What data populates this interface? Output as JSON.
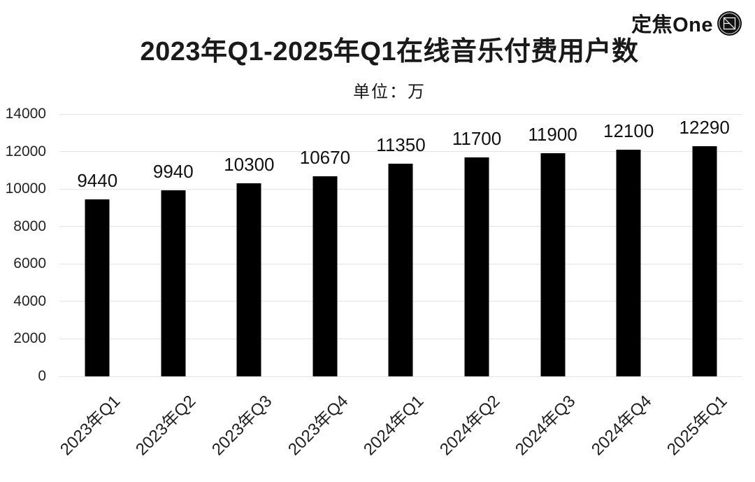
{
  "logo": {
    "text": "定焦One",
    "icon": "camera-lens-logo-icon"
  },
  "colors": {
    "background": "#ffffff",
    "bar": "#000000",
    "grid": "#e3e3e3",
    "text": "#1c1c1c"
  },
  "chart_data": {
    "type": "bar",
    "title": "2023年Q1-2025年Q1在线音乐付费用户数",
    "subtitle": "单位：万",
    "unit": "万",
    "categories": [
      "2023年Q1",
      "2023年Q2",
      "2023年Q3",
      "2023年Q4",
      "2024年Q1",
      "2024年Q2",
      "2024年Q3",
      "2024年Q4",
      "2025年Q1"
    ],
    "values": [
      9440,
      9940,
      10300,
      10670,
      11350,
      11700,
      11900,
      12100,
      12290
    ],
    "ylim": [
      0,
      14000
    ],
    "yticks": [
      0,
      2000,
      4000,
      6000,
      8000,
      10000,
      12000,
      14000
    ],
    "grid": true,
    "value_labels": true,
    "x_label_rotation": -45,
    "legend_position": "none"
  }
}
